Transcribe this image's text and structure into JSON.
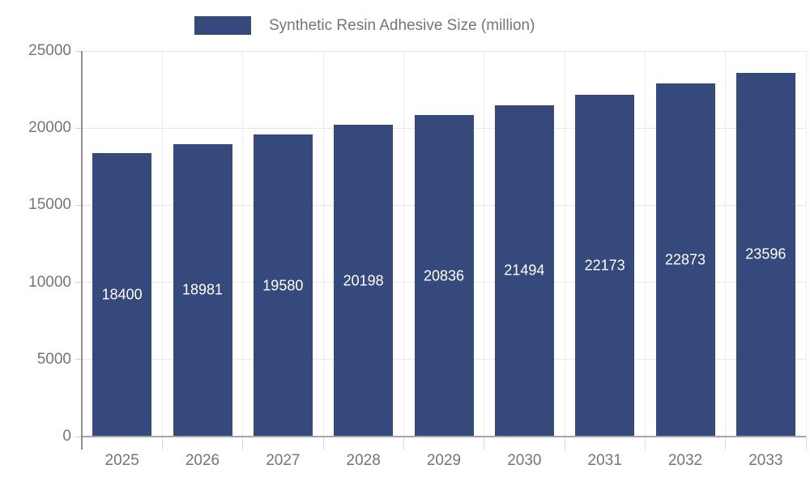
{
  "legend": {
    "label": "Synthetic Resin Adhesive Size (million)"
  },
  "colors": {
    "bar": "#36497D",
    "value_label": "#FFFFFF",
    "tick_text": "#757575"
  },
  "chart_data": {
    "type": "bar",
    "title": "Synthetic Resin Adhesive Size (million)",
    "categories": [
      "2025",
      "2026",
      "2027",
      "2028",
      "2029",
      "2030",
      "2031",
      "2032",
      "2033"
    ],
    "values": [
      18400,
      18981,
      19580,
      20198,
      20836,
      21494,
      22173,
      22873,
      23596
    ],
    "xlabel": "",
    "ylabel": "",
    "ylim": [
      0,
      25000
    ],
    "yticks": [
      0,
      5000,
      10000,
      15000,
      20000,
      25000
    ],
    "grid": true,
    "legend_position": "top",
    "bar_color": "#36497D",
    "value_label_color": "#FFFFFF",
    "value_label_position": "center-of-bar"
  }
}
